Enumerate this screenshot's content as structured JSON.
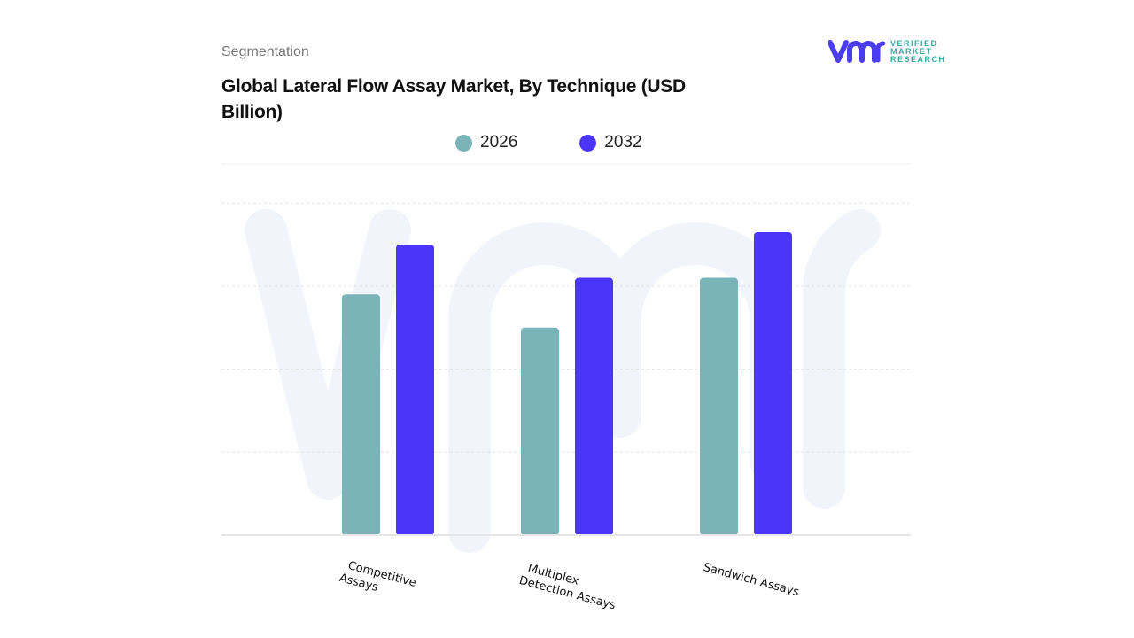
{
  "header": {
    "segment_label": "Segmentation"
  },
  "logo": {
    "mark": "vmr",
    "lines": [
      "VERIFIED",
      "MARKET",
      "RESEARCH"
    ],
    "colors": {
      "mark": "#4b3df0",
      "text": "#3aa7a3"
    }
  },
  "chart_data": {
    "type": "bar",
    "title": "Global Lateral Flow Assay Market, By Technique (USD Billion)",
    "categories": [
      "Competitive Assays",
      "Multiplex Detection Assays",
      "Sandwich Assays"
    ],
    "category_lines": [
      [
        "Competitive",
        "Assays"
      ],
      [
        "Multiplex",
        "Detection Assays"
      ],
      [
        "Sandwich Assays"
      ]
    ],
    "series": [
      {
        "name": "2026",
        "color": "#7ab3b8",
        "values": [
          2.9,
          2.5,
          3.1
        ]
      },
      {
        "name": "2032",
        "color": "#4b35fb",
        "values": [
          3.5,
          3.1,
          3.65
        ]
      }
    ],
    "ylim": [
      0,
      4
    ],
    "y_ticks_shown": false,
    "grid": true,
    "legend": "top-center"
  }
}
